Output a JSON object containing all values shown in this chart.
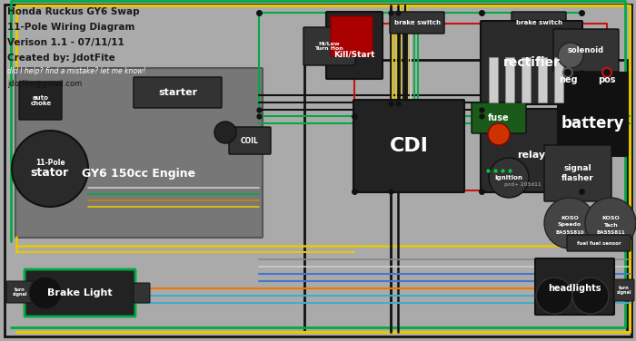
{
  "bg_color": "#aaaaaa",
  "title_lines": [
    "Honda Ruckus GY6 Swap",
    "11-Pole Wiring Diagram",
    "Verison 1.1 - 07/11/11",
    "Created by: JdotFite"
  ],
  "subtitle": "did I help? find a mistake? let me know!",
  "email": "jdotfite@gmail.com",
  "wire_colors": {
    "yellow": "#e8c800",
    "green": "#00aa44",
    "black": "#111111",
    "red": "#cc1111",
    "blue": "#4477cc",
    "white": "#cccccc",
    "orange": "#ee7700",
    "light_blue": "#44aacc",
    "brown": "#885533",
    "gray": "#888888"
  }
}
